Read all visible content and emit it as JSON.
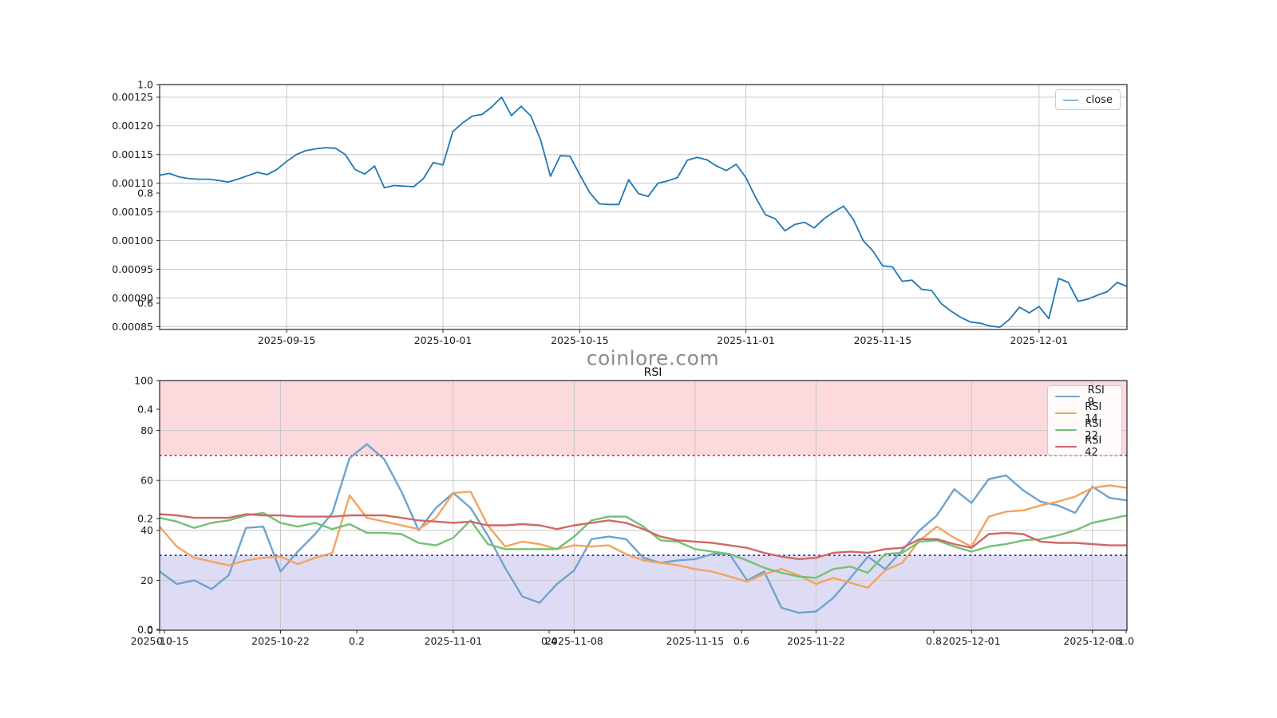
{
  "watermark": "coinlore.com",
  "price_legend": {
    "label": "close"
  },
  "rsi_legend": {
    "items": [
      {
        "label": "RSI 9"
      },
      {
        "label": "RSI 14"
      },
      {
        "label": "RSI 22"
      },
      {
        "label": "RSI 42"
      }
    ]
  },
  "outer_axis": {
    "x_tick_labels": [
      "0.0",
      "0.2",
      "0.4",
      "0.6",
      "0.8",
      "1.0"
    ],
    "y_tick_labels": [
      "1.0",
      "0.8",
      "0.6",
      "0.4",
      "0.2",
      "0.0"
    ]
  },
  "chart_data": [
    {
      "id": "price",
      "type": "line",
      "title": "",
      "legend_position": "upper right",
      "grid": true,
      "x_start_date": "2025-09-02",
      "x_tick_labels": [
        "2025-09-15",
        "2025-10-01",
        "2025-10-15",
        "2025-11-01",
        "2025-11-15",
        "2025-12-01"
      ],
      "x_tick_indices": [
        13,
        29,
        43,
        60,
        74,
        90
      ],
      "y_tick_labels": [
        "0.00125",
        "0.00120",
        "0.00115",
        "0.00110",
        "0.00105",
        "0.00100",
        "0.00095",
        "0.00090",
        "0.00085"
      ],
      "y_tick_values": [
        0.00125,
        0.0012,
        0.00115,
        0.0011,
        0.00105,
        0.001,
        0.00095,
        0.0009,
        0.00085
      ],
      "ylim": [
        0.000845,
        0.001272
      ],
      "series": [
        {
          "name": "close",
          "color": "#1f77b4",
          "values": [
            0.001114,
            0.001117,
            0.001111,
            0.001108,
            0.001107,
            0.001107,
            0.001105,
            0.001102,
            0.001107,
            0.001113,
            0.001119,
            0.001115,
            0.001124,
            0.001138,
            0.00115,
            0.001157,
            0.00116,
            0.001162,
            0.001161,
            0.00115,
            0.001124,
            0.001116,
            0.00113,
            0.001092,
            0.001096,
            0.001095,
            0.001094,
            0.001108,
            0.001136,
            0.001132,
            0.00119,
            0.001205,
            0.001217,
            0.00122,
            0.001233,
            0.00125,
            0.001218,
            0.001234,
            0.001217,
            0.001175,
            0.001112,
            0.001148,
            0.001147,
            0.001115,
            0.001084,
            0.001064,
            0.001063,
            0.001063,
            0.001106,
            0.001082,
            0.001077,
            0.0011,
            0.001104,
            0.00111,
            0.00114,
            0.001145,
            0.001141,
            0.00113,
            0.001122,
            0.001133,
            0.00111,
            0.001075,
            0.001045,
            0.001038,
            0.001017,
            0.001028,
            0.001032,
            0.001022,
            0.001038,
            0.00105,
            0.00106,
            0.001037,
            0.001,
            0.000982,
            0.000956,
            0.000954,
            0.000929,
            0.000931,
            0.000915,
            0.000913,
            0.00089,
            0.000877,
            0.000866,
            0.000858,
            0.000856,
            0.000851,
            0.000849,
            0.000863,
            0.000884,
            0.000874,
            0.000885,
            0.000864,
            0.000934,
            0.000927,
            0.000894,
            0.000898,
            0.000905,
            0.000911,
            0.000927,
            0.00092
          ]
        }
      ]
    },
    {
      "id": "rsi",
      "type": "line",
      "title": "RSI",
      "legend_position": "upper right",
      "grid": true,
      "x_start_date": "2025-10-15",
      "x_tick_labels": [
        "2025-10-15",
        "2025-10-22",
        "2025-11-01",
        "2025-11-08",
        "2025-11-15",
        "2025-11-22",
        "2025-12-01",
        "2025-12-08"
      ],
      "x_tick_indices": [
        0,
        7,
        17,
        24,
        31,
        38,
        47,
        54
      ],
      "y_tick_labels": [
        "100",
        "80",
        "60",
        "40",
        "20",
        "0"
      ],
      "y_tick_values": [
        100,
        80,
        60,
        40,
        20,
        0
      ],
      "ylim": [
        0,
        100
      ],
      "overbought_level": 70,
      "oversold_level": 30,
      "band_colors": {
        "overbought": "#fbd9dd",
        "oversold": "#dedcf5"
      },
      "threshold_colors": {
        "overbought": "#d62238",
        "oversold": "#2222cc"
      },
      "series": [
        {
          "name": "RSI 9",
          "color": "#6fa3cd",
          "values": [
            23.5,
            18.5,
            20,
            16.5,
            22,
            41,
            41.5,
            23.5,
            31.5,
            38.5,
            47,
            69,
            74.5,
            68.5,
            55.5,
            40,
            49,
            55,
            49,
            38,
            25,
            13.5,
            11,
            18.5,
            24,
            36.5,
            37.5,
            36.5,
            29,
            27,
            28,
            28.5,
            30.5,
            30.5,
            20,
            23.5,
            9,
            7,
            7.5,
            13,
            21,
            29.5,
            24.5,
            32,
            40,
            46,
            56.5,
            51,
            60.5,
            62,
            56,
            51.5,
            50,
            47,
            57.5,
            53,
            52
          ]
        },
        {
          "name": "RSI 14",
          "color": "#f4a35e",
          "values": [
            41.5,
            33.5,
            29,
            27.5,
            26,
            28,
            29,
            29.5,
            26.5,
            29,
            31,
            54,
            45,
            43.5,
            42,
            40.5,
            45,
            55,
            55.5,
            42,
            33.5,
            35.5,
            34.5,
            32.5,
            34,
            33.5,
            34,
            30.5,
            28,
            27,
            26,
            24.5,
            23.5,
            21.5,
            19.5,
            22.5,
            24.5,
            22,
            18.5,
            21,
            19,
            17,
            24,
            27,
            36,
            41.5,
            37,
            33.5,
            45.5,
            47.5,
            48,
            50,
            51.5,
            53.5,
            57,
            58,
            57
          ]
        },
        {
          "name": "RSI 22",
          "color": "#74c074",
          "values": [
            45,
            43.5,
            41,
            43,
            44,
            46,
            47,
            43,
            41.5,
            43,
            40.5,
            42.5,
            39,
            39,
            38.5,
            35,
            34,
            37,
            44,
            34.5,
            32.5,
            32.5,
            32.5,
            32.5,
            37.5,
            44,
            45.5,
            45.5,
            41.5,
            36,
            35.5,
            32.5,
            31.5,
            30.5,
            28,
            25,
            23,
            21.5,
            21,
            24.5,
            25.5,
            23,
            30.5,
            31,
            35.5,
            36,
            33.5,
            31.5,
            33.5,
            34.5,
            36,
            36.5,
            38,
            40,
            43,
            44.5,
            46
          ]
        },
        {
          "name": "RSI 42",
          "color": "#d16864",
          "values": [
            46.5,
            46,
            45,
            45,
            45,
            46.5,
            46,
            46,
            45.5,
            45.5,
            45.5,
            46,
            46,
            46,
            45,
            44,
            43.5,
            43,
            43.5,
            42,
            42,
            42.5,
            42,
            40.5,
            42,
            43,
            44,
            43,
            40.5,
            37.5,
            36,
            35.5,
            35,
            34,
            33,
            31,
            29.5,
            28.5,
            29,
            31,
            31.5,
            31,
            32.5,
            33,
            36.5,
            36.5,
            34.5,
            33,
            38.5,
            39,
            38.5,
            35.5,
            35,
            35,
            34.5,
            34,
            34
          ]
        }
      ]
    }
  ]
}
